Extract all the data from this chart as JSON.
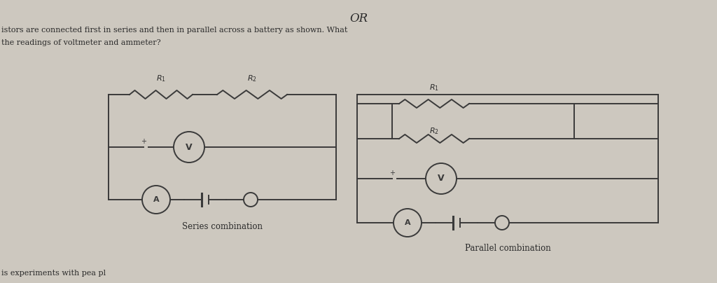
{
  "background_color": "#cdc8bf",
  "title_text": "OR",
  "title_fontsize": 12,
  "line1_text": "istors are connected first in series and then in parallel across a battery as shown. What",
  "line2_text": "the readings of voltmeter and ammeter?",
  "bottom_text": "is experiments with pea pl",
  "series_label": "Series combination",
  "parallel_label": "Parallel combination",
  "text_color": "#2a2a2a",
  "circuit_color": "#3a3a3a"
}
